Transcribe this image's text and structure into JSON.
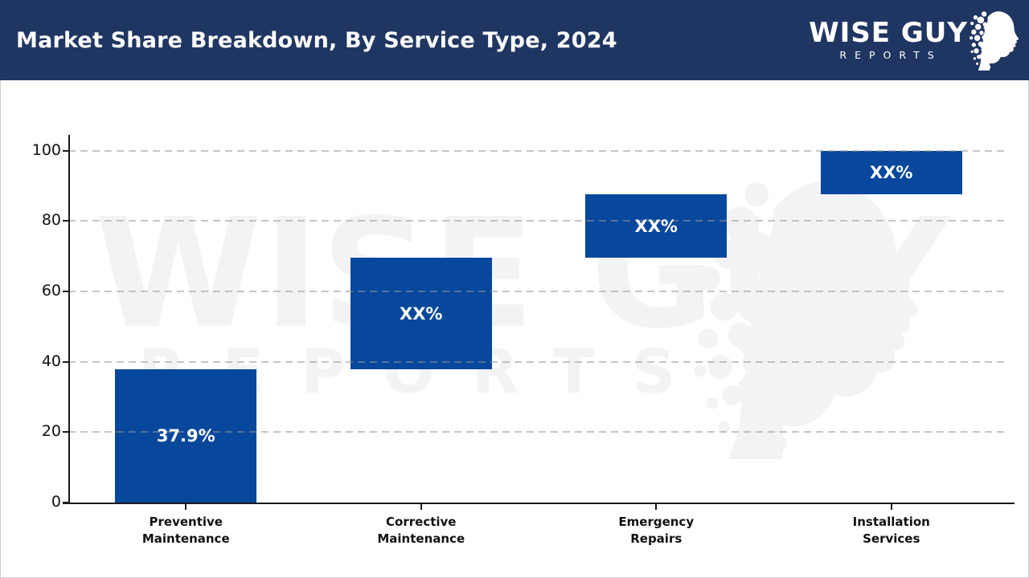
{
  "header": {
    "title": "Market Share Breakdown, By Service Type, 2024",
    "logo": {
      "brand": "WISE GUY",
      "sub": "REPORTS"
    }
  },
  "watermark": {
    "brand": "WISE GUY",
    "sub": "REPORTS"
  },
  "colors": {
    "header_bg": "#203662",
    "bar": "#07479c",
    "axis": "#1a1a1a",
    "grid": "#bdbdbd",
    "watermark": "#f2f3f5",
    "bar_label_text": "#ffffff",
    "title_text": "#ffffff"
  },
  "chart_data": {
    "type": "bar",
    "subtype": "floating-waterfall",
    "title": "Market Share Breakdown, By Service Type, 2024",
    "categories": [
      "Preventive Maintenance",
      "Corrective Maintenance",
      "Emergency Repairs",
      "Installation Services"
    ],
    "segments": [
      {
        "category": "Preventive Maintenance",
        "start": 0,
        "end": 37.9,
        "label": "37.9%"
      },
      {
        "category": "Corrective Maintenance",
        "start": 37.9,
        "end": 69.5,
        "label": "XX%"
      },
      {
        "category": "Emergency Repairs",
        "start": 69.5,
        "end": 87.5,
        "label": "XX%"
      },
      {
        "category": "Installation Services",
        "start": 87.5,
        "end": 100,
        "label": "XX%"
      }
    ],
    "xlabel": "",
    "ylabel": "",
    "ylim": [
      0,
      100
    ],
    "yticks": [
      0,
      20,
      40,
      60,
      80,
      100
    ],
    "grid": "horizontal-dashed",
    "legend": null
  }
}
